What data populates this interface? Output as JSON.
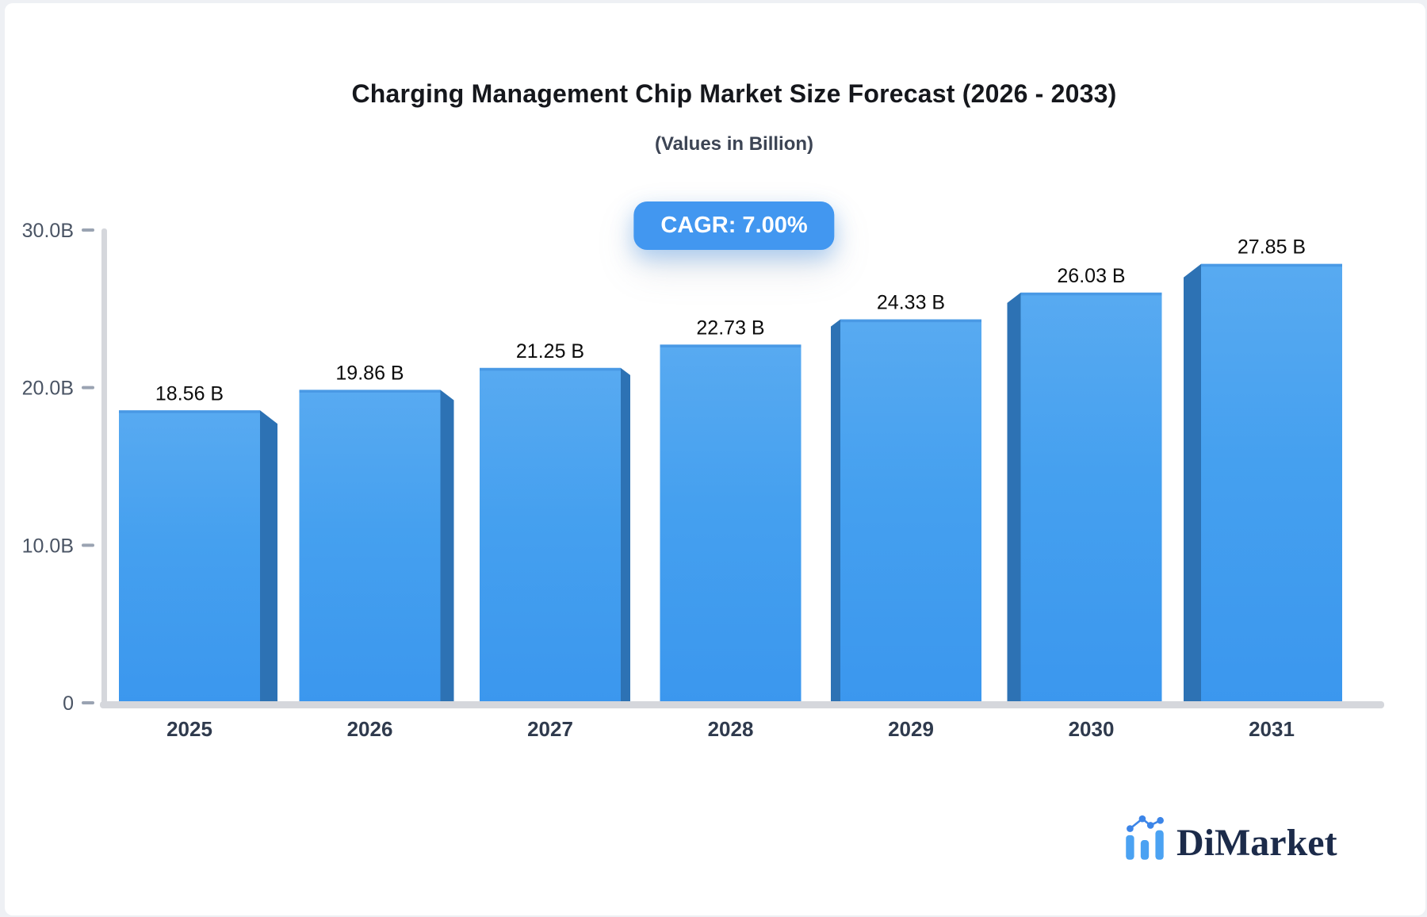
{
  "header": {
    "title": "Charging Management Chip Market Size Forecast (2026 - 2033)",
    "subtitle": "(Values in Billion)"
  },
  "badge": {
    "label": "CAGR: 7.00%"
  },
  "chart_data": {
    "type": "bar",
    "title": "Charging Management Chip Market Size Forecast (2026 - 2033)",
    "subtitle": "(Values in Billion)",
    "categories": [
      "2025",
      "2026",
      "2027",
      "2028",
      "2029",
      "2030",
      "2031"
    ],
    "values": [
      18.56,
      19.86,
      21.25,
      22.73,
      24.33,
      26.03,
      27.85
    ],
    "value_labels": [
      "18.56 B",
      "19.86 B",
      "21.25 B",
      "22.73 B",
      "24.33 B",
      "26.03 B",
      "27.85 B"
    ],
    "ylabel": "",
    "xlabel": "",
    "ylim": [
      0,
      30
    ],
    "yticks": [
      {
        "value": 0,
        "label": "0"
      },
      {
        "value": 10,
        "label": "10.0B"
      },
      {
        "value": 20,
        "label": "20.0B"
      },
      {
        "value": 30,
        "label": "30.0B"
      }
    ],
    "grid": false,
    "legend": "none",
    "style": "3d-perspective-bars",
    "colors": {
      "bar_top": "#58aaf1",
      "bar_mid": "#45a0ef",
      "bar_bottom": "#3b97ee",
      "bar_top_edge": "#4696e3",
      "bar_side_face": "#2d72b4",
      "axis_line": "#d5d7dc",
      "tick_dash": "#9aa3b2",
      "ytick_label": "#4a5464",
      "xtick_label": "#2f3a4d",
      "value_label": "#0c0c0c",
      "accent": "#4297f0"
    }
  },
  "logo": {
    "text": "DiMarket",
    "icon": "bar-chart-trend-icon",
    "text_color": "#1c2b4a",
    "icon_color": "#4ba2f2",
    "icon_accent": "#3c85e8"
  }
}
